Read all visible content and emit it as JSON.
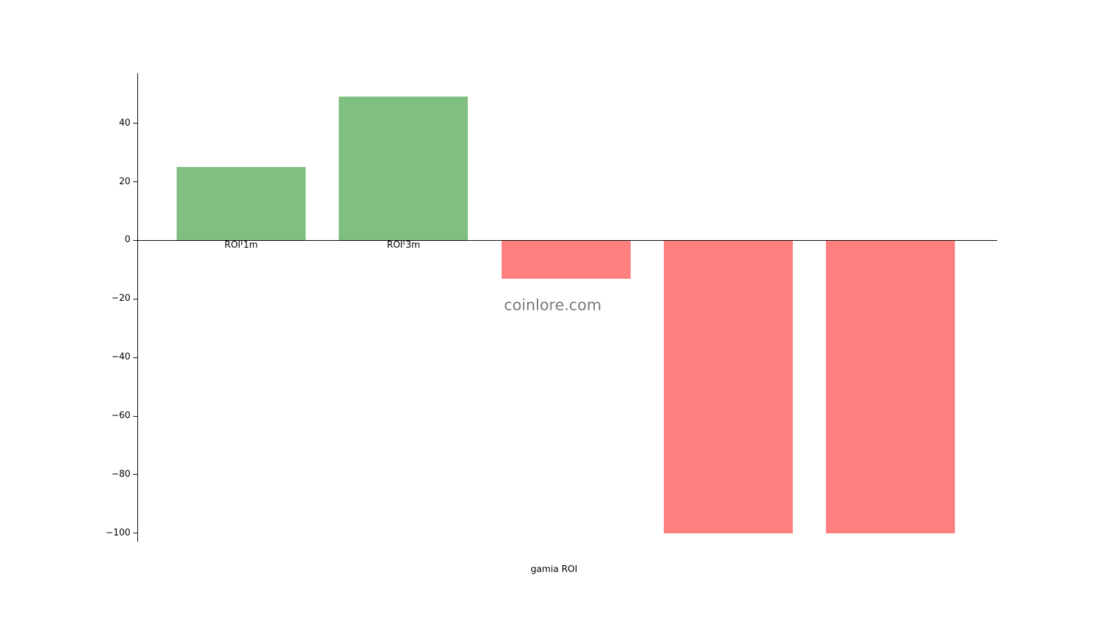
{
  "chart_data": {
    "type": "bar",
    "title": "",
    "xlabel": "gamia ROI",
    "ylabel": "",
    "categories": [
      "ROI 1m",
      "ROI 3m",
      "",
      "",
      ""
    ],
    "values": [
      25,
      49,
      -13,
      -100,
      -100
    ],
    "yticks": [
      40,
      20,
      0,
      -20,
      -40,
      -60,
      -80,
      -100
    ],
    "ytick_labels": [
      "40",
      "20",
      "0",
      "−20",
      "−40",
      "−60",
      "−80",
      "−100"
    ],
    "ylim": [
      -103,
      57
    ],
    "grid": "off",
    "legend": "none",
    "colors": {
      "positive": "#7fbf7f",
      "negative": "#ff7f7f",
      "axis": "#000000",
      "watermark_text": "#7a7a7a"
    },
    "watermark": "coinlore.com"
  }
}
